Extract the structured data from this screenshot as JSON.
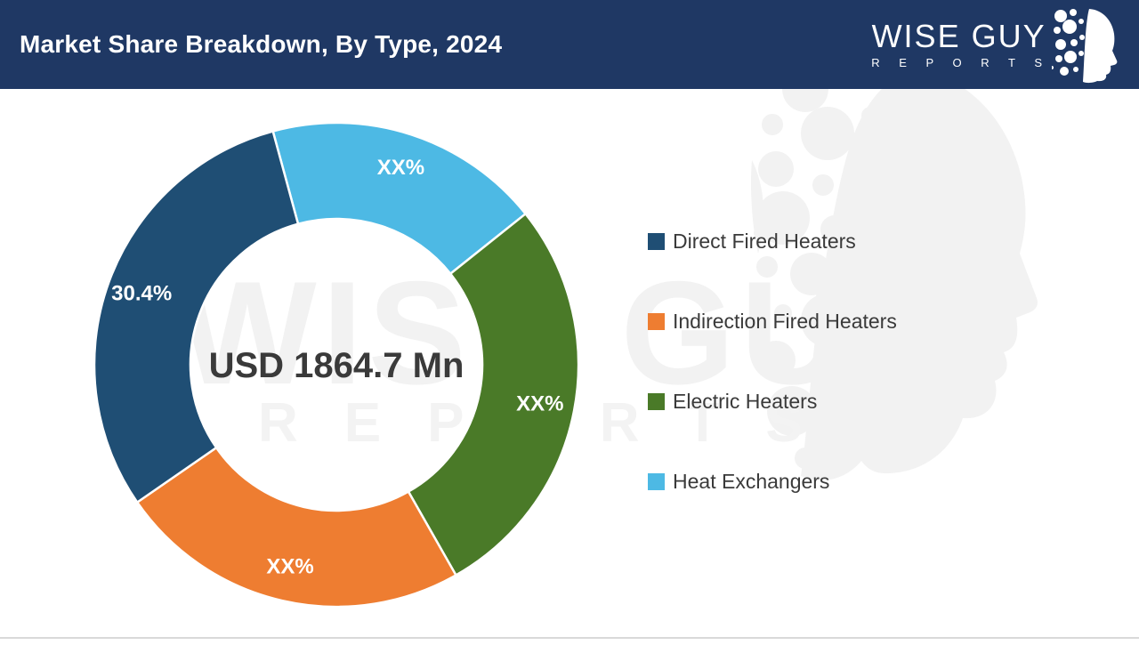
{
  "header": {
    "title": "Market Share Breakdown, By Type, 2024",
    "bg_color": "#1F3864",
    "logo": {
      "line1": "WISE GUY",
      "line2": "R E P O R T S"
    }
  },
  "chart_data": {
    "type": "donut",
    "title": "Market Share Breakdown, By Type, 2024",
    "center_label": "USD 1864.7 Mn",
    "start_angle_deg": -15.2,
    "direction": "clockwise",
    "legend_position": "right",
    "segments": [
      {
        "name": "Heat Exchangers",
        "display_label": "XX%",
        "percent_est": 18.5,
        "color": "#4DB9E4"
      },
      {
        "name": "Electric Heaters",
        "display_label": "XX%",
        "percent_est": 27.5,
        "color": "#4A7A28"
      },
      {
        "name": "Indirection Fired Heaters",
        "display_label": "XX%",
        "percent_est": 23.6,
        "color": "#EE7D31"
      },
      {
        "name": "Direct Fired Heaters",
        "display_label": "30.4%",
        "percent_est": 30.4,
        "color": "#1F4E74"
      }
    ]
  },
  "legend": {
    "items": [
      {
        "label": "Direct Fired Heaters",
        "color": "#1F4E74"
      },
      {
        "label": "Indirection Fired Heaters",
        "color": "#EE7D31"
      },
      {
        "label": "Electric Heaters",
        "color": "#4A7A28"
      },
      {
        "label": "Heat Exchangers",
        "color": "#4DB9E4"
      }
    ]
  },
  "watermark": {
    "line1": "WISE GUY",
    "line2": "REPORTS"
  }
}
